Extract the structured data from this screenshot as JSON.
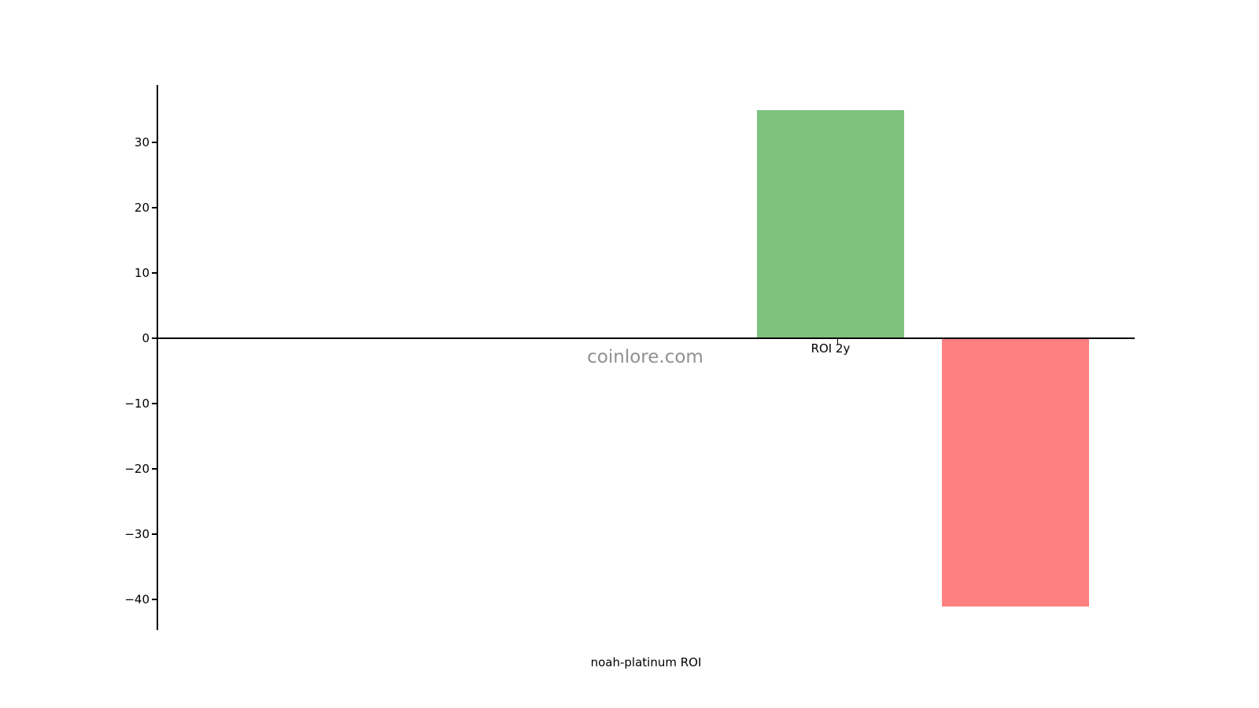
{
  "chart_data": {
    "type": "bar",
    "title": "",
    "xlabel": "noah-platinum ROI",
    "ylabel": "",
    "watermark": "coinlore.com",
    "categories": [
      "ROI 2y",
      ""
    ],
    "bars": [
      {
        "label": "ROI 2y",
        "value": 35,
        "color": "#7ec17e"
      },
      {
        "label": "",
        "value": -41,
        "color": "#ff8080"
      }
    ],
    "yticks": [
      30,
      20,
      10,
      0,
      -10,
      -20,
      -30,
      -40
    ],
    "ylim": [
      -44.8,
      38.8
    ],
    "grid": false,
    "legend": "none",
    "x_axis_position": "zero",
    "colors": {
      "positive_bar": "#7ec17e",
      "negative_bar": "#ff8080",
      "axis": "#000000",
      "tick_text": "#000000",
      "watermark_text": "#909090"
    }
  }
}
